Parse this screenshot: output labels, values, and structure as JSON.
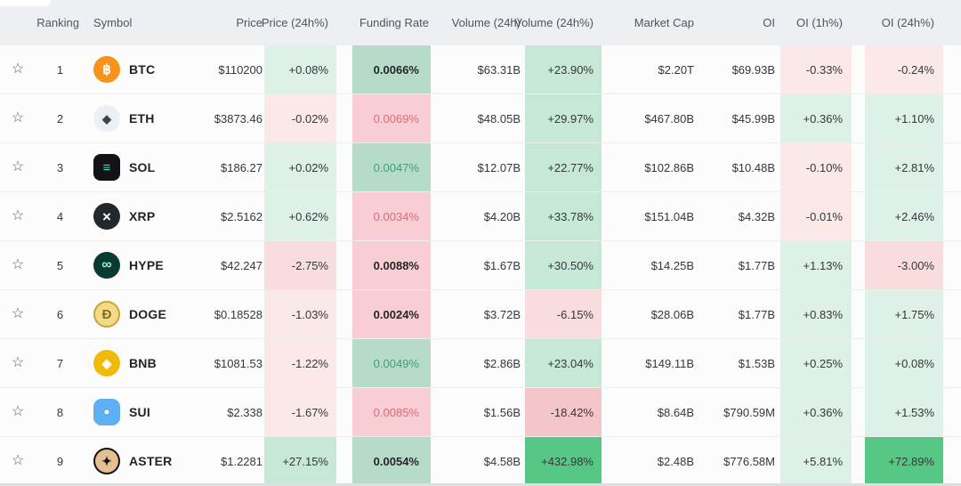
{
  "table": {
    "columns": [
      "Ranking",
      "Symbol",
      "Price",
      "Price (24h%)",
      "Funding Rate",
      "Volume (24h)",
      "Volume (24h%)",
      "Market Cap",
      "OI",
      "OI (1h%)",
      "OI (24h%)"
    ],
    "star_icon": "☆",
    "tones": {
      "g1": "#ddf1e6",
      "g2": "#c7e8d6",
      "g3": "#57c786",
      "gf": "#b6dcc9",
      "r1": "#fbe9ea",
      "r2": "#f9dcde",
      "r3": "#f5c6c9",
      "rf": "#f8cdd3"
    },
    "fg_colors": {
      "default": "#34373c",
      "dark": "#24262a",
      "red": "#e06a76",
      "green": "#3f9e7c"
    },
    "rows": [
      {
        "rank": "1",
        "symbol": "BTC",
        "icon": {
          "name": "btc-coin-icon",
          "char": "฿",
          "bg": "#f7931a",
          "fg": "#ffffff",
          "radius": "50%",
          "size": "15px"
        },
        "price": "$110200",
        "price_24h": {
          "v": "+0.08%",
          "tone": "g1"
        },
        "funding": {
          "v": "0.0066%",
          "tone": "gf",
          "fg": "dark",
          "bold": true
        },
        "volume_24h": "$63.31B",
        "volume_24h_pct": {
          "v": "+23.90%",
          "tone": "g2"
        },
        "market_cap": "$2.20T",
        "oi": "$69.93B",
        "oi_1h": {
          "v": "-0.33%",
          "tone": "r1"
        },
        "oi_24h": {
          "v": "-0.24%",
          "tone": "r1"
        }
      },
      {
        "rank": "2",
        "symbol": "ETH",
        "icon": {
          "name": "eth-coin-icon",
          "char": "◆",
          "bg": "#eceff4",
          "fg": "#3f434b",
          "radius": "50%",
          "size": "13px"
        },
        "price": "$3873.46",
        "price_24h": {
          "v": "-0.02%",
          "tone": "r1"
        },
        "funding": {
          "v": "0.0069%",
          "tone": "rf",
          "fg": "red",
          "bold": false
        },
        "volume_24h": "$48.05B",
        "volume_24h_pct": {
          "v": "+29.97%",
          "tone": "g2"
        },
        "market_cap": "$467.80B",
        "oi": "$45.99B",
        "oi_1h": {
          "v": "+0.36%",
          "tone": "g1"
        },
        "oi_24h": {
          "v": "+1.10%",
          "tone": "g1"
        }
      },
      {
        "rank": "3",
        "symbol": "SOL",
        "icon": {
          "name": "sol-coin-icon",
          "char": "≡",
          "bg": "#121217",
          "fg": "#2be3a4",
          "radius": "8px",
          "size": "15px"
        },
        "price": "$186.27",
        "price_24h": {
          "v": "+0.02%",
          "tone": "g1"
        },
        "funding": {
          "v": "0.0047%",
          "tone": "gf",
          "fg": "green",
          "bold": false
        },
        "volume_24h": "$12.07B",
        "volume_24h_pct": {
          "v": "+22.77%",
          "tone": "g2"
        },
        "market_cap": "$102.86B",
        "oi": "$10.48B",
        "oi_1h": {
          "v": "-0.10%",
          "tone": "r1"
        },
        "oi_24h": {
          "v": "+2.81%",
          "tone": "g1"
        }
      },
      {
        "rank": "4",
        "symbol": "XRP",
        "icon": {
          "name": "xrp-coin-icon",
          "char": "×",
          "bg": "#23282d",
          "fg": "#ffffff",
          "radius": "50%",
          "size": "17px"
        },
        "price": "$2.5162",
        "price_24h": {
          "v": "+0.62%",
          "tone": "g1"
        },
        "funding": {
          "v": "0.0034%",
          "tone": "rf",
          "fg": "red",
          "bold": false
        },
        "volume_24h": "$4.20B",
        "volume_24h_pct": {
          "v": "+33.78%",
          "tone": "g2"
        },
        "market_cap": "$151.04B",
        "oi": "$4.32B",
        "oi_1h": {
          "v": "-0.01%",
          "tone": "r1"
        },
        "oi_24h": {
          "v": "+2.46%",
          "tone": "g1"
        }
      },
      {
        "rank": "5",
        "symbol": "HYPE",
        "icon": {
          "name": "hype-coin-icon",
          "char": "∞",
          "bg": "#0a3a32",
          "fg": "#8bf2d9",
          "radius": "50%",
          "size": "16px"
        },
        "price": "$42.247",
        "price_24h": {
          "v": "-2.75%",
          "tone": "r2"
        },
        "funding": {
          "v": "0.0088%",
          "tone": "rf",
          "fg": "dark",
          "bold": true
        },
        "volume_24h": "$1.67B",
        "volume_24h_pct": {
          "v": "+30.50%",
          "tone": "g2"
        },
        "market_cap": "$14.25B",
        "oi": "$1.77B",
        "oi_1h": {
          "v": "+1.13%",
          "tone": "g1"
        },
        "oi_24h": {
          "v": "-3.00%",
          "tone": "r2"
        }
      },
      {
        "rank": "6",
        "symbol": "DOGE",
        "icon": {
          "name": "doge-coin-icon",
          "char": "Ð",
          "bg": "#f1db88",
          "fg": "#8a6a1d",
          "radius": "50%",
          "size": "15px",
          "border": "#c9a53d"
        },
        "price": "$0.18528",
        "price_24h": {
          "v": "-1.03%",
          "tone": "r1"
        },
        "funding": {
          "v": "0.0024%",
          "tone": "rf",
          "fg": "dark",
          "bold": true
        },
        "volume_24h": "$3.72B",
        "volume_24h_pct": {
          "v": "-6.15%",
          "tone": "r2"
        },
        "market_cap": "$28.06B",
        "oi": "$1.77B",
        "oi_1h": {
          "v": "+0.83%",
          "tone": "g1"
        },
        "oi_24h": {
          "v": "+1.75%",
          "tone": "g1"
        }
      },
      {
        "rank": "7",
        "symbol": "BNB",
        "icon": {
          "name": "bnb-coin-icon",
          "char": "◈",
          "bg": "#f0b90b",
          "fg": "#ffffff",
          "radius": "50%",
          "size": "14px"
        },
        "price": "$1081.53",
        "price_24h": {
          "v": "-1.22%",
          "tone": "r1"
        },
        "funding": {
          "v": "0.0049%",
          "tone": "gf",
          "fg": "green",
          "bold": false
        },
        "volume_24h": "$2.86B",
        "volume_24h_pct": {
          "v": "+23.04%",
          "tone": "g2"
        },
        "market_cap": "$149.11B",
        "oi": "$1.53B",
        "oi_1h": {
          "v": "+0.25%",
          "tone": "g1"
        },
        "oi_24h": {
          "v": "+0.08%",
          "tone": "g1"
        }
      },
      {
        "rank": "8",
        "symbol": "SUI",
        "icon": {
          "name": "sui-coin-icon",
          "char": "●",
          "bg": "#5fb0f2",
          "fg": "#ffffff",
          "radius": "9px",
          "size": "11px"
        },
        "price": "$2.338",
        "price_24h": {
          "v": "-1.67%",
          "tone": "r1"
        },
        "funding": {
          "v": "0.0085%",
          "tone": "rf",
          "fg": "red",
          "bold": false
        },
        "volume_24h": "$1.56B",
        "volume_24h_pct": {
          "v": "-18.42%",
          "tone": "r3"
        },
        "market_cap": "$8.64B",
        "oi": "$790.59M",
        "oi_1h": {
          "v": "+0.36%",
          "tone": "g1"
        },
        "oi_24h": {
          "v": "+1.53%",
          "tone": "g1"
        }
      },
      {
        "rank": "9",
        "symbol": "ASTER",
        "icon": {
          "name": "aster-coin-icon",
          "char": "✦",
          "bg": "#e3bf92",
          "fg": "#17120c",
          "radius": "50%",
          "size": "14px",
          "border": "#17120c"
        },
        "price": "$1.2281",
        "price_24h": {
          "v": "+27.15%",
          "tone": "g2"
        },
        "funding": {
          "v": "0.0054%",
          "tone": "gf",
          "fg": "dark",
          "bold": true
        },
        "volume_24h": "$4.58B",
        "volume_24h_pct": {
          "v": "+432.98%",
          "tone": "g3"
        },
        "market_cap": "$2.48B",
        "oi": "$776.58M",
        "oi_1h": {
          "v": "+5.81%",
          "tone": "g1"
        },
        "oi_24h": {
          "v": "+72.89%",
          "tone": "g3"
        }
      }
    ]
  }
}
